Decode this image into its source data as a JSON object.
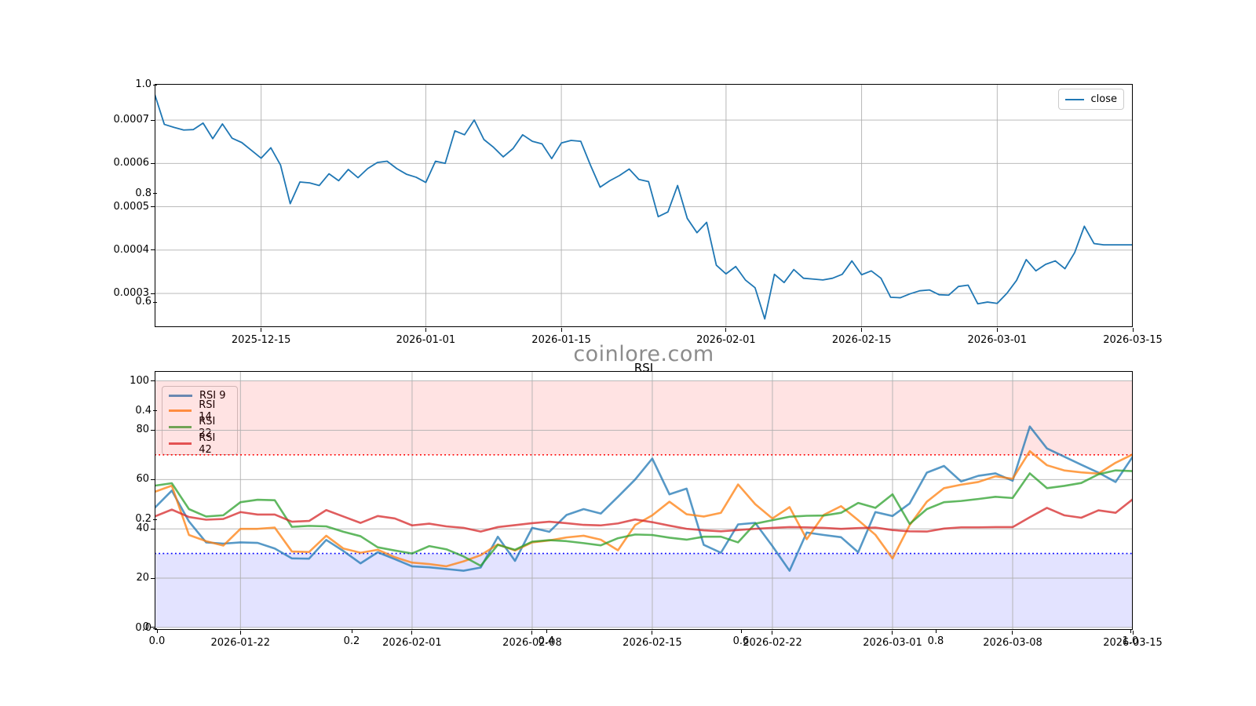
{
  "watermark": {
    "text": "coinlore.com"
  },
  "overlay_axis": {
    "xtick_labels": [
      "0.0",
      "0.2",
      "0.4",
      "0.6",
      "0.8",
      "1.0"
    ],
    "ytick_labels": [
      "1.0",
      "0.8",
      "0.6",
      "0.4",
      "0.2",
      "0.0"
    ]
  },
  "chart_data": [
    {
      "type": "line",
      "id": "price",
      "title": "",
      "ylabel": "",
      "xlabel": "",
      "grid": true,
      "ylim": [
        0.0002222,
        0.0007833
      ],
      "yticks": [
        {
          "value": 0.0007,
          "label": "0.0007"
        },
        {
          "value": 0.0006,
          "label": "0.0006"
        },
        {
          "value": 0.0005,
          "label": "0.0005"
        },
        {
          "value": 0.0004,
          "label": "0.0004"
        },
        {
          "value": 0.0003,
          "label": "0.0003"
        }
      ],
      "xticks": [
        {
          "f": 0.1089,
          "label": "2025-12-15"
        },
        {
          "f": 0.2772,
          "label": "2026-01-01"
        },
        {
          "f": 0.4158,
          "label": "2026-01-15"
        },
        {
          "f": 0.5842,
          "label": "2026-02-01"
        },
        {
          "f": 0.7228,
          "label": "2026-02-15"
        },
        {
          "f": 0.8614,
          "label": "2026-03-01"
        },
        {
          "f": 1.0,
          "label": "2026-03-15"
        }
      ],
      "legend_position": "top-right",
      "series": [
        {
          "name": "close",
          "color": "#1f77b4",
          "opacity": 1,
          "width": 1.8,
          "values": [
            0.00076,
            0.00069,
            0.000683,
            0.000677,
            0.000678,
            0.000693,
            0.000657,
            0.000691,
            0.000658,
            0.000648,
            0.00063,
            0.000612,
            0.000636,
            0.000596,
            0.000507,
            0.000557,
            0.000555,
            0.000549,
            0.000576,
            0.00056,
            0.000586,
            0.000567,
            0.000588,
            0.000602,
            0.000605,
            0.000588,
            0.000575,
            0.000568,
            0.000556,
            0.000605,
            0.0006,
            0.000675,
            0.000666,
            0.0007,
            0.000655,
            0.000637,
            0.000615,
            0.000634,
            0.000666,
            0.000651,
            0.000645,
            0.000611,
            0.000647,
            0.000653,
            0.000651,
            0.000596,
            0.000545,
            0.00056,
            0.000572,
            0.000587,
            0.000563,
            0.000558,
            0.000477,
            0.000488,
            0.000549,
            0.000473,
            0.00044,
            0.000464,
            0.000365,
            0.000345,
            0.000362,
            0.000331,
            0.000313,
            0.000241,
            0.000344,
            0.000325,
            0.000355,
            0.000335,
            0.000333,
            0.000331,
            0.000335,
            0.000344,
            0.000375,
            0.000343,
            0.000352,
            0.000335,
            0.000291,
            0.00029,
            0.000299,
            0.000306,
            0.000308,
            0.000297,
            0.000296,
            0.000316,
            0.000319,
            0.000276,
            0.00028,
            0.000277,
            0.0003,
            0.00033,
            0.000378,
            0.000352,
            0.000367,
            0.000375,
            0.000357,
            0.000394,
            0.000455,
            0.000415,
            0.000412,
            0.000412,
            0.000412,
            0.000412
          ]
        }
      ]
    },
    {
      "type": "line",
      "id": "rsi",
      "title": "RSI",
      "grid": true,
      "ylim": [
        -1,
        104
      ],
      "yticks": [
        {
          "value": 100,
          "label": "100"
        },
        {
          "value": 80,
          "label": "80"
        },
        {
          "value": 60,
          "label": "60"
        },
        {
          "value": 40,
          "label": "40"
        },
        {
          "value": 20,
          "label": "20"
        },
        {
          "value": 0,
          "label": "0"
        }
      ],
      "xticks": [
        {
          "f": 0.0877,
          "label": "2026-01-22"
        },
        {
          "f": 0.2632,
          "label": "2026-02-01"
        },
        {
          "f": 0.386,
          "label": "2026-02-08"
        },
        {
          "f": 0.5088,
          "label": "2026-02-15"
        },
        {
          "f": 0.6316,
          "label": "2026-02-22"
        },
        {
          "f": 0.7544,
          "label": "2026-03-01"
        },
        {
          "f": 0.8772,
          "label": "2026-03-08"
        },
        {
          "f": 1.0,
          "label": "2026-03-15"
        }
      ],
      "bands": [
        {
          "from": 70,
          "to": 100,
          "color": "#ff0000",
          "opacity": 0.11
        },
        {
          "from": 0,
          "to": 30,
          "color": "#0000ff",
          "opacity": 0.11
        }
      ],
      "hlines": [
        {
          "y": 70,
          "color": "#ff0000"
        },
        {
          "y": 30,
          "color": "#0000ff"
        }
      ],
      "legend_position": "top-left",
      "series": [
        {
          "name": "RSI 9",
          "color": "#1f77b4",
          "opacity": 0.75,
          "width": 2.6,
          "values": [
            48.5,
            55.5,
            43,
            34.5,
            34,
            34.5,
            34.3,
            32,
            28,
            27.9,
            35.5,
            31,
            26,
            30.5,
            27.7,
            24.8,
            24.4,
            23.7,
            23,
            24.3,
            36.8,
            27,
            40.4,
            38.8,
            45.6,
            48,
            46.2,
            53,
            60,
            68.5,
            54,
            56.3,
            33.5,
            30.3,
            41.8,
            42.4,
            33,
            23,
            38.5,
            37.5,
            36.6,
            30.5,
            46.8,
            45.2,
            50.3,
            62.8,
            65.5,
            59.2,
            61.5,
            62.5,
            59.5,
            81.5,
            72.6,
            69.3,
            66,
            62.8,
            59,
            69.3
          ]
        },
        {
          "name": "RSI 14",
          "color": "#ff7f0e",
          "opacity": 0.75,
          "width": 2.6,
          "values": [
            55,
            57.5,
            37.5,
            35,
            33.2,
            40,
            40,
            40.5,
            30.8,
            30.6,
            37.2,
            32,
            30.3,
            31.5,
            28.5,
            26.3,
            25.7,
            24.8,
            26.8,
            29.3,
            33.7,
            31.2,
            34.5,
            35.3,
            36.5,
            37.2,
            35.6,
            31.3,
            41.5,
            45.5,
            51,
            45.9,
            45,
            46.5,
            58,
            50,
            44.2,
            48.8,
            35.8,
            45.7,
            49.2,
            43.5,
            37.6,
            28,
            41.5,
            51,
            56.5,
            57.9,
            59,
            61.3,
            60.3,
            71.5,
            65.8,
            63.7,
            62.9,
            62.4,
            66.8,
            70.2
          ]
        },
        {
          "name": "RSI 22",
          "color": "#2ca02c",
          "opacity": 0.75,
          "width": 2.6,
          "values": [
            57.5,
            58.5,
            48,
            45,
            45.5,
            50.8,
            51.8,
            51.6,
            40.8,
            41.2,
            41,
            38.8,
            37,
            32.5,
            31.2,
            30,
            33,
            31.7,
            28.8,
            25,
            33.5,
            31.5,
            34.8,
            35.4,
            35,
            34.2,
            33.3,
            36.2,
            37.7,
            37.5,
            36.4,
            35.6,
            36.8,
            36.8,
            34.5,
            42.1,
            43.5,
            44.9,
            45.3,
            45.4,
            46.5,
            50.5,
            48.5,
            54,
            42,
            48,
            50.8,
            51.3,
            52.1,
            53,
            52.5,
            62.5,
            56.5,
            57.4,
            58.6,
            62.1,
            63.7,
            63.4
          ]
        },
        {
          "name": "RSI 42",
          "color": "#d62728",
          "opacity": 0.75,
          "width": 2.6,
          "values": [
            45,
            47.8,
            44.8,
            43.7,
            44,
            46.8,
            45.8,
            45.8,
            42.9,
            43.2,
            47.6,
            45,
            42.4,
            45.2,
            44.2,
            41.4,
            42.1,
            41,
            40.4,
            38.9,
            40.7,
            41.5,
            42.3,
            42.9,
            42.3,
            41.6,
            41.4,
            42.2,
            43.8,
            42.7,
            41.3,
            40,
            39.4,
            39,
            39.5,
            40,
            40.4,
            40.7,
            40.6,
            40.4,
            40,
            40.3,
            40.5,
            39.5,
            39,
            38.9,
            40.1,
            40.6,
            40.6,
            40.7,
            40.7,
            44.7,
            48.5,
            45.5,
            44.5,
            47.5,
            46.5,
            52
          ]
        }
      ]
    }
  ]
}
